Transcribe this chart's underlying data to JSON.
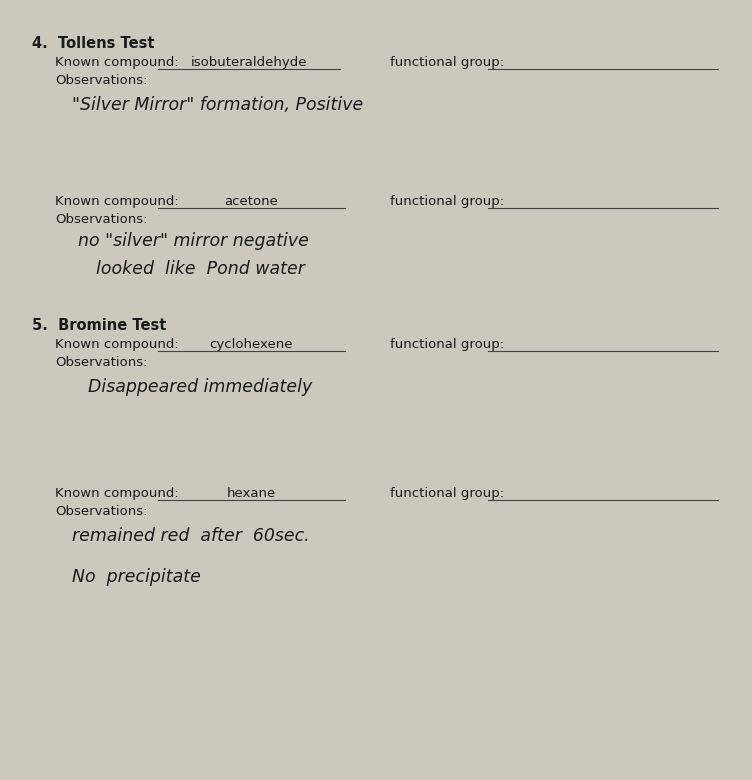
{
  "bg_color": "#ccc8bb",
  "section4_title": "4.  Tollens Test",
  "known1_label": "Known compound:",
  "known1_value": "isobuteraldehyde",
  "fg1_label": "functional group:",
  "obs1_label": "Observations:",
  "obs1_handwriting": "\"Silver Mirror\" formation, Positive",
  "known2_label": "Known compound:",
  "known2_value": "acetone",
  "fg2_label": "functional group:",
  "obs2_label": "Observations:",
  "obs2_handwriting_line1": "no \"silver\" mirror negative",
  "obs2_handwriting_line2": "looked  like  Pond water",
  "section5_title": "5.  Bromine Test",
  "known3_label": "Known compound:",
  "known3_value": "cyclohexene",
  "fg3_label": "functional group:",
  "obs3_label": "Observations:",
  "obs3_handwriting": "Disappeared immediately",
  "known4_label": "Known compound:",
  "known4_value": "hexane",
  "fg4_label": "functional group:",
  "obs4_label": "Observations:",
  "obs4_handwriting_line1": "remained red  after  60sec.",
  "obs4_handwriting_line2": "No  precipitate",
  "print_font_size": 9.5,
  "handwriting_font_size": 12.5,
  "title_font_size": 10.5,
  "text_color": "#1a1a1a",
  "line_color": "#444444"
}
